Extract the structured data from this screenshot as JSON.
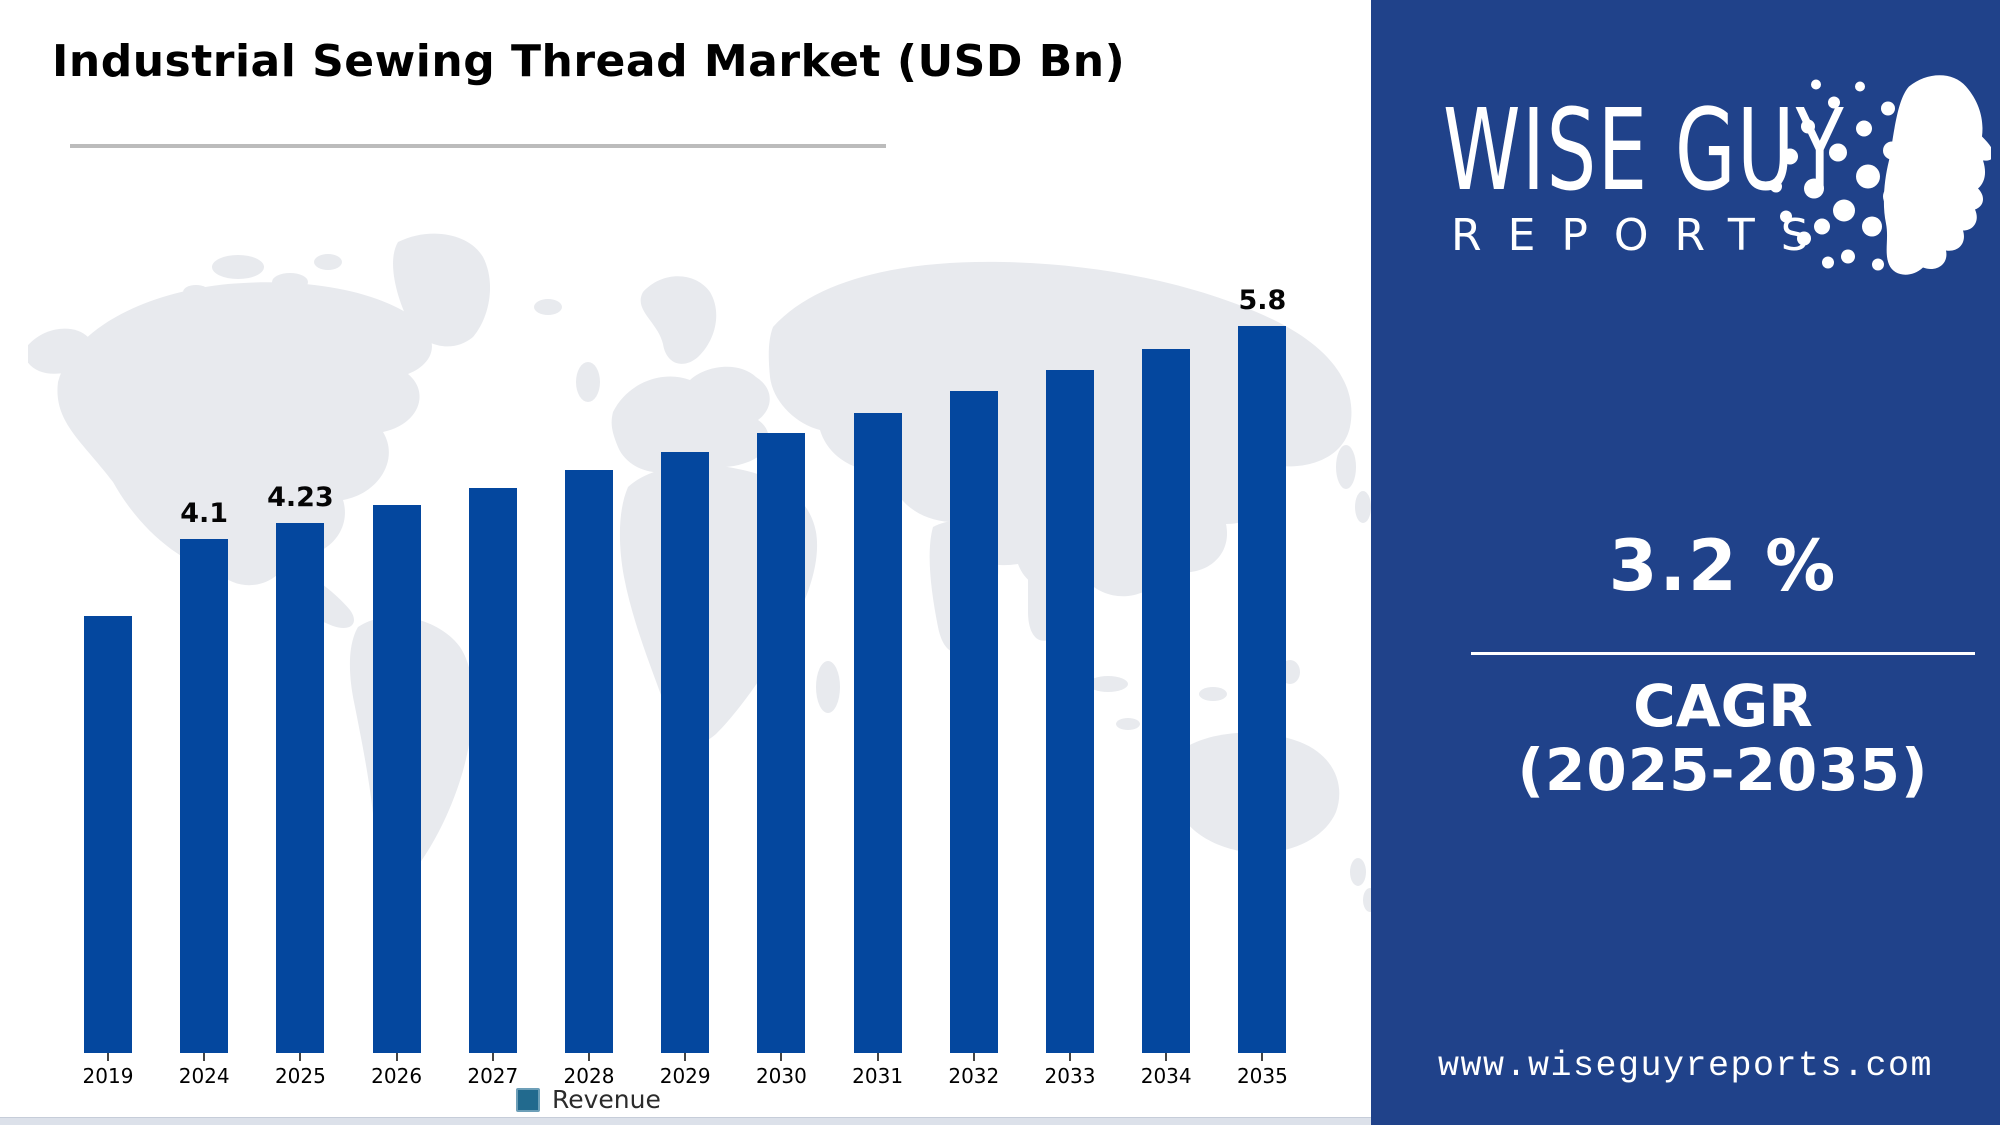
{
  "header": {
    "title": "Industrial Sewing Thread Market (USD Bn)"
  },
  "chart_data": {
    "type": "bar",
    "title": "Industrial Sewing Thread Market (USD Bn)",
    "unit": "USD Bn",
    "categories": [
      "2019",
      "2024",
      "2025",
      "2026",
      "2027",
      "2028",
      "2029",
      "2030",
      "2031",
      "2032",
      "2033",
      "2034",
      "2035"
    ],
    "values": [
      3.49,
      4.1,
      4.23,
      4.37,
      4.51,
      4.65,
      4.8,
      4.95,
      5.11,
      5.28,
      5.45,
      5.62,
      5.8
    ],
    "point_labels": {
      "2024": "4.1",
      "2025": "4.23",
      "2035": "5.8"
    },
    "legend_label": "Revenue",
    "legend_position": "bottom",
    "xlabel": "",
    "ylabel": "",
    "ylim": [
      0,
      6.2
    ],
    "grid": false,
    "colors": {
      "bar": "#04479e",
      "legend_swatch": "#226a8e"
    }
  },
  "side_panel": {
    "brand_line1": "WISE GUY",
    "brand_line2": "REPORTS",
    "cagr_value": "3.2 %",
    "cagr_label": "CAGR",
    "cagr_period": "(2025-2035)",
    "website": "www.wiseguyreports.com",
    "background": "#20428a"
  }
}
